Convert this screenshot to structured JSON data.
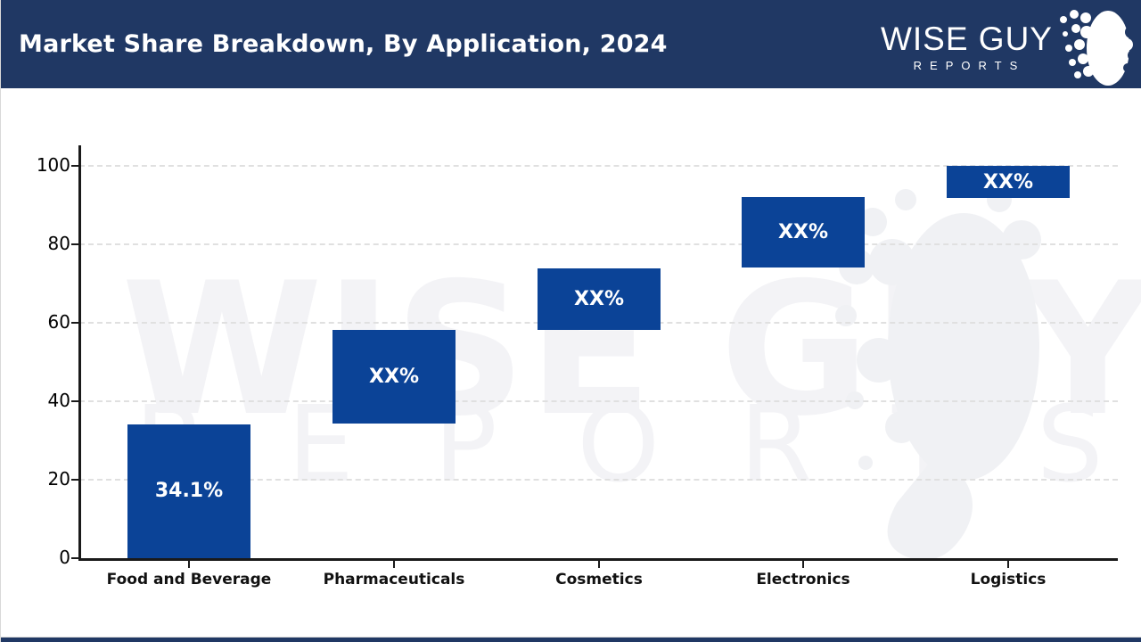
{
  "header": {
    "title": "Market Share Breakdown, By Application, 2024",
    "logo": {
      "line1": "WISE GUY",
      "line2": "REPORTS"
    }
  },
  "watermark": {
    "line1": "WISE GUY",
    "line2": "R E P O R T S"
  },
  "colors": {
    "header_bg": "#203864",
    "bar_fill": "#0b4397",
    "bar_label_text": "#ffffff",
    "gridline": "#e0e0e0",
    "axis_line": "#1a1a1a",
    "watermark_gray": "#f3f3f6"
  },
  "chart_data": {
    "type": "bar",
    "subtype": "waterfall",
    "title": "Market Share Breakdown, By Application, 2024",
    "xlabel": "",
    "ylabel": "",
    "ylim": [
      0,
      105
    ],
    "y_ticks": [
      0,
      20,
      40,
      60,
      80,
      100
    ],
    "grid": "horizontal dashed",
    "legend": "none",
    "categories": [
      "Food and Beverage",
      "Pharmaceuticals",
      "Cosmetics",
      "Electronics",
      "Logistics"
    ],
    "segments": [
      {
        "category": "Food and Beverage",
        "start": 0,
        "end": 34.1,
        "label": "34.1%"
      },
      {
        "category": "Pharmaceuticals",
        "start": 34.3,
        "end": 58.2,
        "label": "XX%"
      },
      {
        "category": "Cosmetics",
        "start": 58.2,
        "end": 73.9,
        "label": "XX%"
      },
      {
        "category": "Electronics",
        "start": 74.0,
        "end": 92.0,
        "label": "XX%"
      },
      {
        "category": "Logistics",
        "start": 91.8,
        "end": 100.0,
        "label": "XX%"
      }
    ]
  }
}
